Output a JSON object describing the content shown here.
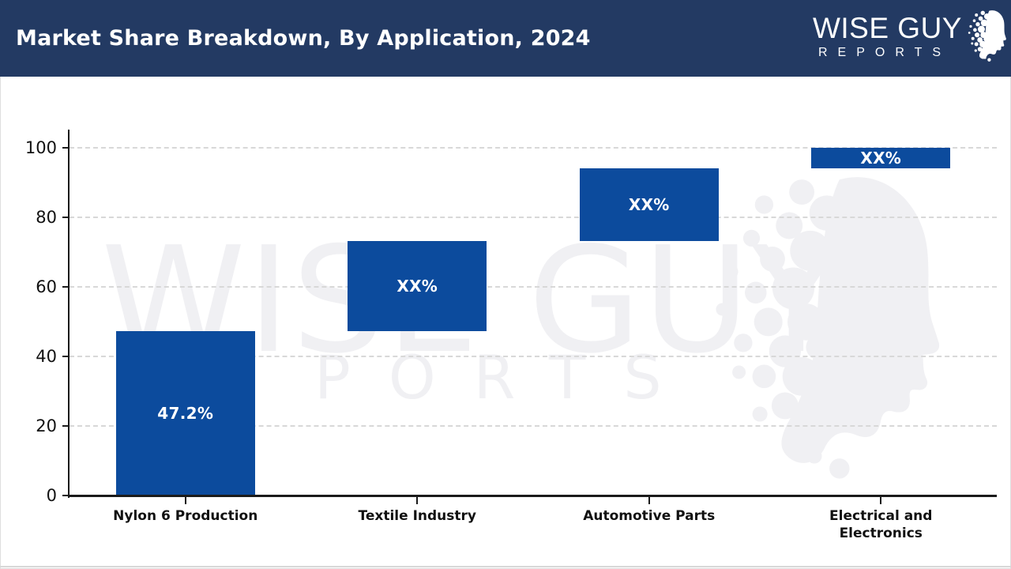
{
  "header": {
    "title": "Market Share Breakdown, By Application, 2024",
    "background_color": "#233a63",
    "logo": {
      "wordmark": "WISE GUY",
      "subtext": "REPORTS",
      "icon": "dotted-head-profile",
      "color": "#ffffff"
    }
  },
  "watermark": {
    "line1": "WISE GUY",
    "line2": "PORTS",
    "icon": "dotted-head-profile",
    "color": "#f0f0f3"
  },
  "chart_data": {
    "type": "bar",
    "subtype": "waterfall-cumulative",
    "title": "Market Share Breakdown, By Application, 2024",
    "categories": [
      "Nylon 6 Production",
      "Textile Industry",
      "Automotive Parts",
      "Electrical and Electronics"
    ],
    "segments": [
      {
        "category": "Nylon 6 Production",
        "start": 0,
        "end": 47.2,
        "value": 47.2,
        "label": "47.2%"
      },
      {
        "category": "Textile Industry",
        "start": 47.2,
        "end": 73.2,
        "value": 26.0,
        "label": "XX%"
      },
      {
        "category": "Automotive Parts",
        "start": 73.2,
        "end": 94.2,
        "value": 21.0,
        "label": "XX%"
      },
      {
        "category": "Electrical and Electronics",
        "start": 94.2,
        "end": 100,
        "value": 5.8,
        "label": "XX%"
      }
    ],
    "y_ticks": [
      0,
      20,
      40,
      60,
      80,
      100
    ],
    "ylim": [
      0,
      100
    ],
    "xlabel": "",
    "ylabel": "",
    "legend": "none",
    "grid": {
      "horizontal": true,
      "style": "dashed",
      "color": "#d8d8d8"
    },
    "bar_color": "#0c4b9d",
    "bar_label_color": "#ffffff",
    "axis_color": "#1b1b1b"
  }
}
